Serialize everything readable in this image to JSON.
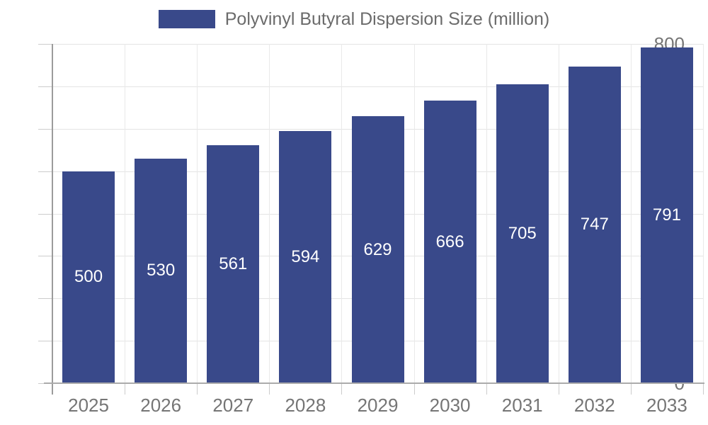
{
  "chart_data": {
    "type": "bar",
    "title": "Polyvinyl Butyral Dispersion Size (million)",
    "legend_entries": [
      "Polyvinyl Butyral Dispersion Size (million)"
    ],
    "legend_position": "top-center",
    "categories": [
      "2025",
      "2026",
      "2027",
      "2028",
      "2029",
      "2030",
      "2031",
      "2032",
      "2033"
    ],
    "values": [
      500,
      530,
      561,
      594,
      629,
      666,
      705,
      747,
      791
    ],
    "xlabel": "",
    "ylabel": "",
    "ylim": [
      0,
      800
    ],
    "yticks": [
      0,
      100,
      200,
      300,
      400,
      500,
      600,
      700,
      800
    ],
    "grid": "horizontal and vertical light gray gridlines",
    "value_labels": "white, centered inside each bar",
    "colors": {
      "bar": "#39498A",
      "value_label": "#ffffff",
      "axis_text": "#757575",
      "legend_text": "#6b6b6b"
    }
  }
}
